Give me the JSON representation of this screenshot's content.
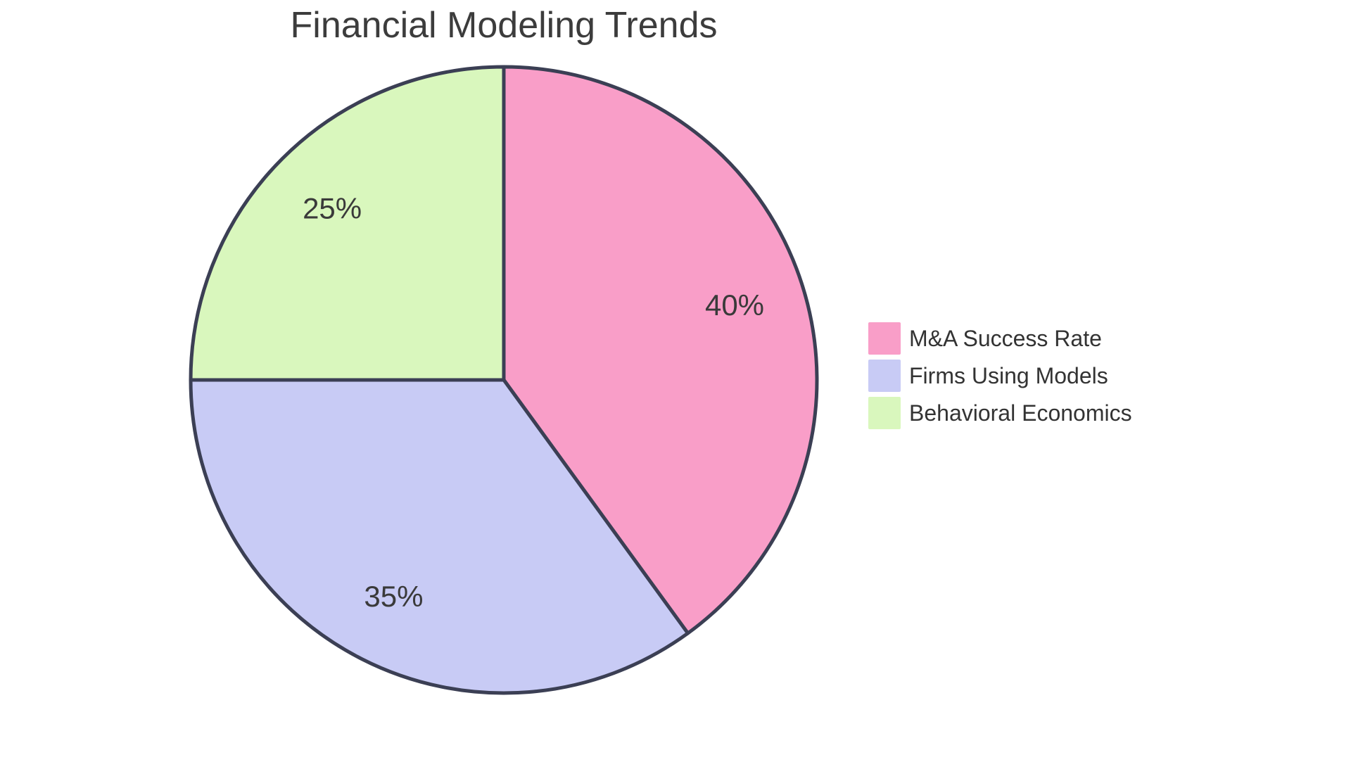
{
  "chart_data": {
    "type": "pie",
    "title": "Financial Modeling Trends",
    "labels": [
      "M&A Success Rate",
      "Firms Using Models",
      "Behavioral Economics"
    ],
    "values": [
      40,
      35,
      25
    ],
    "slice_text": [
      "40%",
      "35%",
      "25%"
    ],
    "colors": [
      "#F99EC8",
      "#C8CBF5",
      "#D9F7BD"
    ],
    "slice_border_color": "#3B3F54",
    "slice_text_color": "#3A3A3A",
    "title_color": "#3C3C3C",
    "legend_text_color": "#333333",
    "background": "#FFFFFF",
    "legend_position": "right",
    "direction": "clockwise",
    "start_angle": "top",
    "total": 100
  }
}
